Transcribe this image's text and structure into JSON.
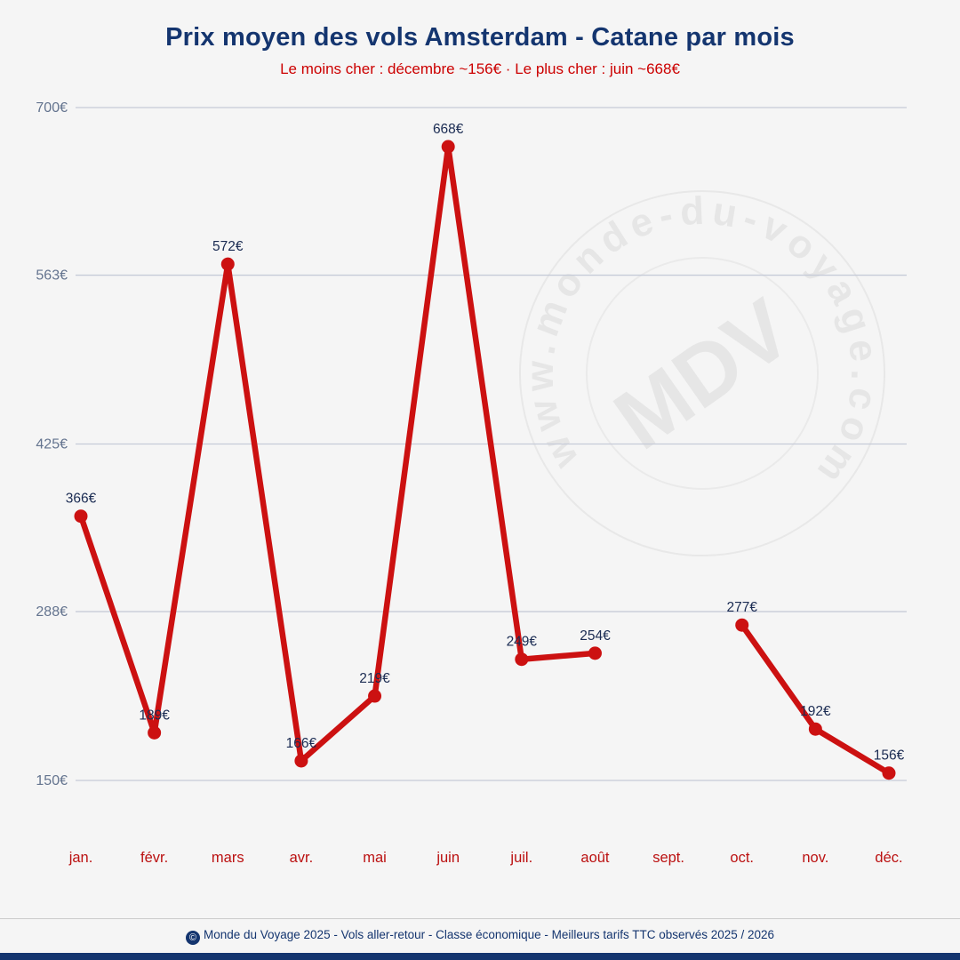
{
  "header": {
    "title": "Prix moyen des vols Amsterdam - Catane par mois",
    "subtitle": "Le moins cher : décembre ~156€ · Le plus cher : juin ~668€"
  },
  "chart_data": {
    "type": "line",
    "title": "Prix moyen des vols Amsterdam - Catane par mois",
    "xlabel": "",
    "ylabel": "",
    "categories": [
      "jan.",
      "févr.",
      "mars",
      "avr.",
      "mai",
      "juin",
      "juil.",
      "août",
      "sept.",
      "oct.",
      "nov.",
      "déc."
    ],
    "values": [
      366,
      189,
      572,
      166,
      219,
      668,
      249,
      254,
      null,
      277,
      192,
      156
    ],
    "point_labels": [
      "366€",
      "189€",
      "572€",
      "166€",
      "219€",
      "668€",
      "249€",
      "254€",
      null,
      "277€",
      "192€",
      "156€"
    ],
    "y_ticks": [
      700,
      563,
      425,
      288,
      150
    ],
    "y_tick_labels": [
      "700€",
      "563€",
      "425€",
      "288€",
      "150€"
    ],
    "ylim": [
      150,
      700
    ],
    "grid": "horizontal",
    "legend": "none",
    "line_color": "#cc1111",
    "marker_color": "#cc1111",
    "value_label_color": "#1a2b52",
    "y_tick_color": "#64748f",
    "x_tick_color": "#bb1111",
    "grid_color": "#c6cbd8"
  },
  "watermark": {
    "circle_text": "www.monde-du-voyage.com",
    "center_text": "MDV"
  },
  "footer": {
    "copyright_symbol": "©",
    "text": "Monde du Voyage 2025 - Vols aller-retour - Classe économique - Meilleurs tarifs TTC observés 2025 / 2026"
  }
}
